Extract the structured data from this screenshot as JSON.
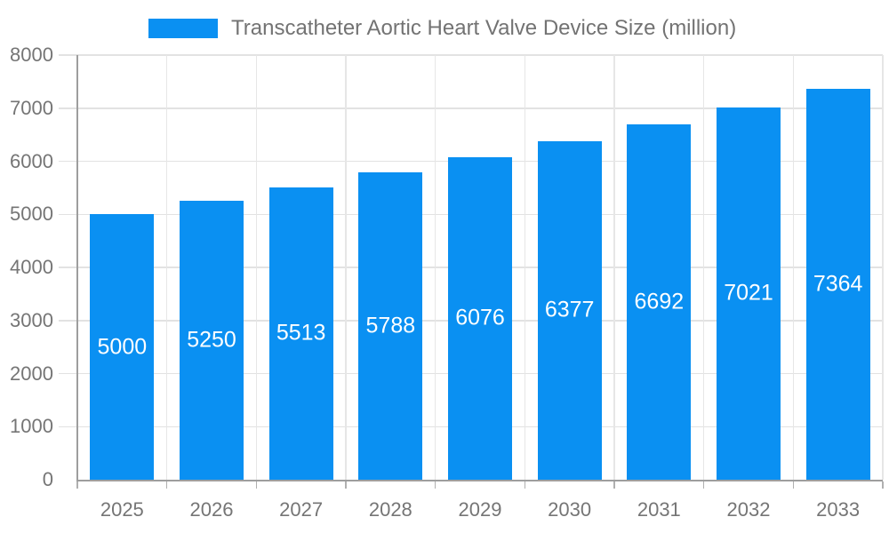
{
  "chart_data": {
    "type": "bar",
    "legend_label": "Transcatheter Aortic Heart Valve Device Size (million)",
    "series": [
      {
        "name": "Transcatheter Aortic Heart Valve Device Size (million)",
        "values": [
          5000,
          5250,
          5513,
          5788,
          6076,
          6377,
          6692,
          7021,
          7364
        ]
      }
    ],
    "categories": [
      "2025",
      "2026",
      "2027",
      "2028",
      "2029",
      "2030",
      "2031",
      "2032",
      "2033"
    ],
    "value_labels": [
      "5000",
      "5250",
      "5513",
      "5788",
      "6076",
      "6377",
      "6692",
      "7021",
      "7364"
    ],
    "xlabel": "",
    "ylabel": "",
    "ylim": [
      0,
      8000
    ],
    "ytick_interval": 1000,
    "yticks": [
      0,
      1000,
      2000,
      3000,
      4000,
      5000,
      6000,
      7000,
      8000
    ],
    "grid": true,
    "legend_position": "top",
    "colors": {
      "bar": "#0A90F2",
      "axis_line": "#9E9E9E",
      "gridline": "#E2E2E2",
      "axis_text": "#757575",
      "legend_text": "#737373",
      "bar_value_text": "#FFFFFF",
      "background": "#FFFFFF"
    }
  }
}
